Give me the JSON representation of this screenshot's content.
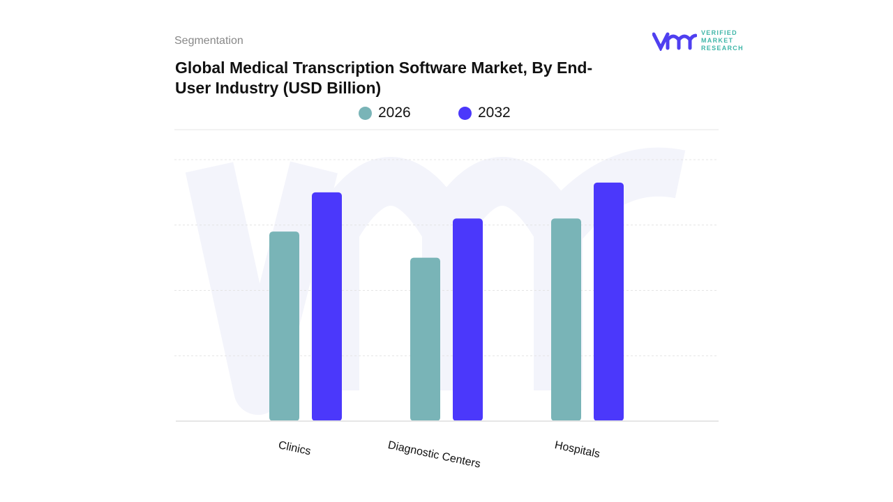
{
  "header": {
    "segment_label": "Segmentation",
    "title": "Global Medical Transcription Software Market, By End-User Industry (USD Billion)"
  },
  "logo": {
    "text": [
      "VERIFIED",
      "MARKET",
      "RESEARCH"
    ],
    "colors": {
      "mark": "#4f3ff0",
      "text": "#3fb6a8"
    }
  },
  "chart_data": {
    "type": "bar",
    "title": "Global Medical Transcription Software Market, By End-User Industry (USD Billion)",
    "categories": [
      "Clinics",
      "Diagnostic Centers",
      "Hospitals"
    ],
    "series": [
      {
        "name": "2026",
        "color": "#79b4b7",
        "values": [
          2.9,
          2.5,
          3.1
        ]
      },
      {
        "name": "2032",
        "color": "#4b38fb",
        "values": [
          3.5,
          3.1,
          3.65
        ]
      }
    ],
    "ylim": [
      0,
      4
    ],
    "grid": true,
    "y_axis_labels_shown": false,
    "legend": "top-center"
  }
}
